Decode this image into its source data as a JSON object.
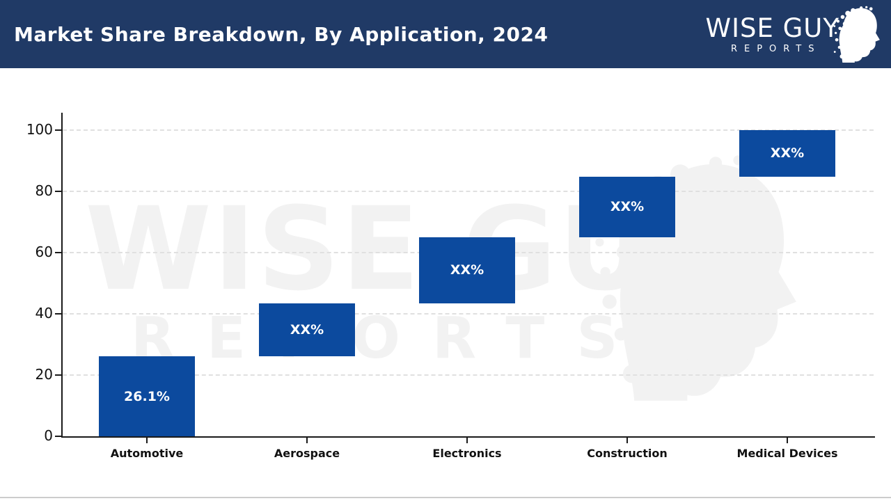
{
  "header": {
    "title": "Market Share Breakdown, By Application, 2024",
    "logo": {
      "line1": "WISE GUY",
      "line2": "REPORTS"
    }
  },
  "watermark": {
    "line1": "WISE GUY",
    "line2": "REPORTS"
  },
  "chart_data": {
    "type": "bar",
    "subtype": "floating-segment-waterfall",
    "title": "Market Share Breakdown, By Application, 2024",
    "categories": [
      "Automotive",
      "Aerospace",
      "Electronics",
      "Construction",
      "Medical Devices"
    ],
    "segments": [
      {
        "category": "Automotive",
        "start": 0,
        "end": 26.1,
        "label": "26.1%"
      },
      {
        "category": "Aerospace",
        "start": 26.1,
        "end": 43.5,
        "label": "XX%"
      },
      {
        "category": "Electronics",
        "start": 43.5,
        "end": 65.0,
        "label": "XX%"
      },
      {
        "category": "Construction",
        "start": 65.0,
        "end": 84.8,
        "label": "XX%"
      },
      {
        "category": "Medical Devices",
        "start": 84.8,
        "end": 100.0,
        "label": "XX%"
      }
    ],
    "yticks": [
      0,
      20,
      40,
      60,
      80,
      100
    ],
    "ylim": [
      0,
      105
    ],
    "xlabel": "",
    "ylabel": "",
    "grid": true,
    "legend": "none",
    "bar_color": "#0C4A9E"
  },
  "colors": {
    "header_bg": "#203A66",
    "bar": "#0C4A9E",
    "watermark": "#F2F2F2",
    "axis": "#1A1A1A",
    "gridline": "#E0E0E0",
    "footer_line": "#CCCCCC"
  }
}
